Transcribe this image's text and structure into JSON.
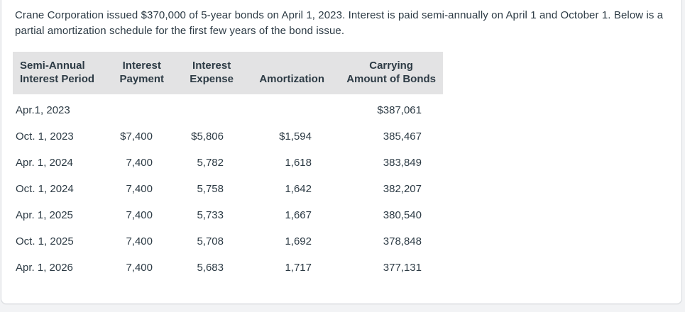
{
  "colors": {
    "text": "#2d3b45",
    "header_bg": "#e3e3e4",
    "card_bg": "#ffffff",
    "card_border": "#d8dbdf",
    "page_bg": "#f2f3f5"
  },
  "question": {
    "text": "Crane Corporation issued $370,000 of 5-year bonds on April 1, 2023. Interest is paid semi-annually on April 1 and October 1. Below is a partial amortization schedule for the first few years of the bond issue."
  },
  "table": {
    "columns": [
      {
        "key": "period",
        "header_lines": [
          "Semi-Annual",
          "Interest Period"
        ]
      },
      {
        "key": "interest-payment",
        "header_lines": [
          "Interest",
          "Payment"
        ]
      },
      {
        "key": "interest-expense",
        "header_lines": [
          "Interest",
          "Expense"
        ]
      },
      {
        "key": "amortization",
        "header_lines": [
          "Amortization"
        ]
      },
      {
        "key": "carrying-amount",
        "header_lines": [
          "Carrying",
          "Amount of Bonds"
        ]
      }
    ],
    "rows": [
      [
        "Apr.1, 2023",
        "",
        "",
        "",
        "$387,061"
      ],
      [
        "Oct. 1, 2023",
        "$7,400",
        "$5,806",
        "$1,594",
        "385,467"
      ],
      [
        "Apr. 1, 2024",
        "7,400",
        "5,782",
        "1,618",
        "383,849"
      ],
      [
        "Oct. 1, 2024",
        "7,400",
        "5,758",
        "1,642",
        "382,207"
      ],
      [
        "Apr. 1, 2025",
        "7,400",
        "5,733",
        "1,667",
        "380,540"
      ],
      [
        "Oct. 1, 2025",
        "7,400",
        "5,708",
        "1,692",
        "378,848"
      ],
      [
        "Apr. 1, 2026",
        "7,400",
        "5,683",
        "1,717",
        "377,131"
      ]
    ]
  }
}
